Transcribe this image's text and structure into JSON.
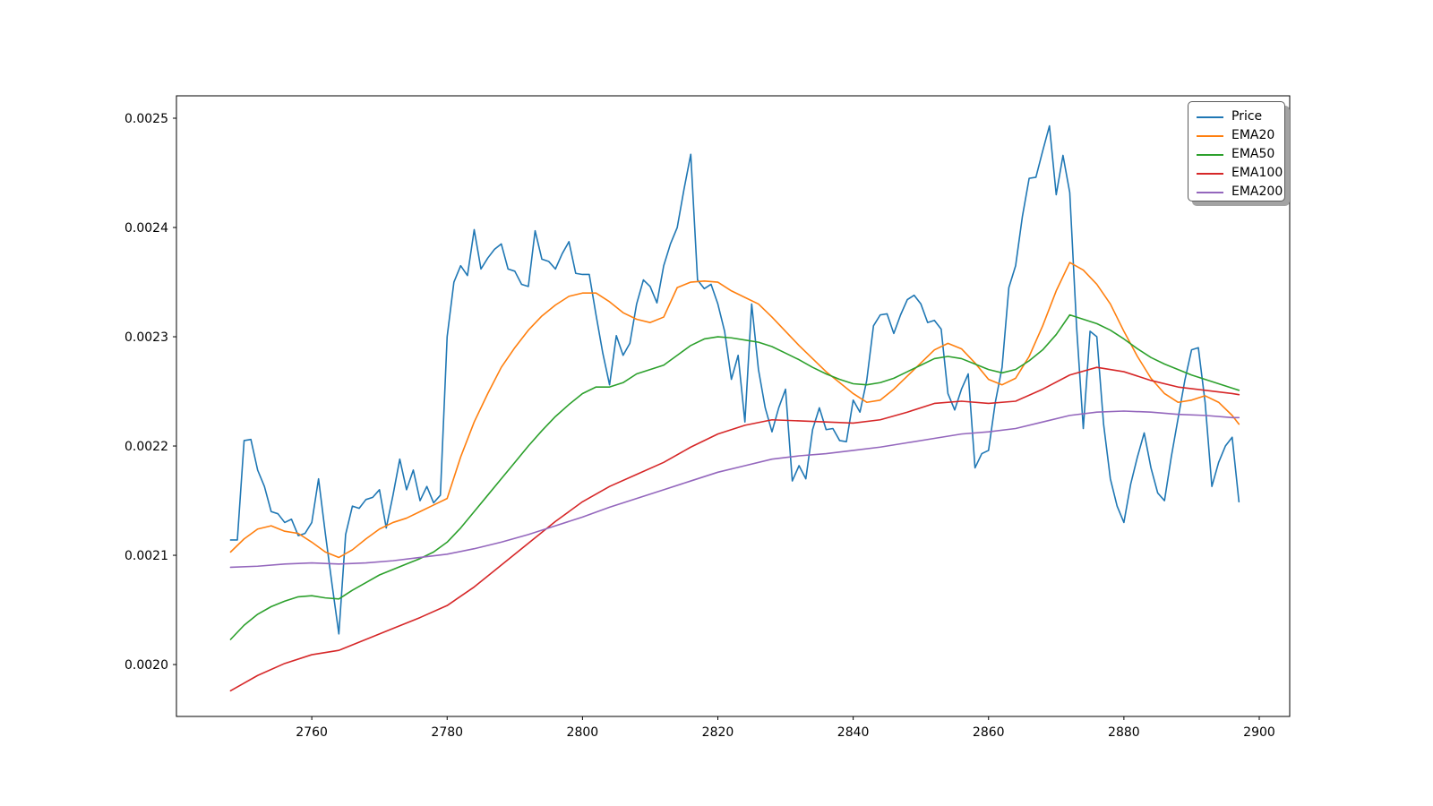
{
  "colors": {
    "background": "#ffffff",
    "spine": "#000000",
    "tick": "#000000",
    "tick_label": "#000000",
    "legend_bg": "#ffffff",
    "legend_border": "#5a5a5a",
    "legend_shadow": "#a3a3a3"
  },
  "legend": {
    "position": "upper right"
  },
  "chart_data": {
    "type": "line",
    "title": "",
    "xlabel": "",
    "ylabel": "",
    "xlim": [
      2740,
      2904.5
    ],
    "ylim": [
      0.0019525,
      0.0025205
    ],
    "grid": false,
    "legend_position": "upper right",
    "x_ticks": {
      "values": [
        2760,
        2780,
        2800,
        2820,
        2840,
        2860,
        2880,
        2900
      ],
      "labels": [
        "2760",
        "2780",
        "2800",
        "2820",
        "2840",
        "2860",
        "2880",
        "2900"
      ]
    },
    "y_ticks": {
      "values": [
        0.002,
        0.0021,
        0.0022,
        0.0023,
        0.0024,
        0.0025
      ],
      "labels": [
        "0.0020",
        "0.0021",
        "0.0022",
        "0.0023",
        "0.0024",
        "0.0025"
      ]
    },
    "series": [
      {
        "name": "Price",
        "color": "#1f77b4",
        "x_range": [
          2748,
          2897
        ],
        "y": [
          0.002114,
          0.002114,
          0.002205,
          0.002206,
          0.002178,
          0.002163,
          0.00214,
          0.002138,
          0.00213,
          0.002133,
          0.002118,
          0.00212,
          0.00213,
          0.00217,
          0.00212,
          0.002073,
          0.002028,
          0.002119,
          0.002145,
          0.002143,
          0.002151,
          0.002153,
          0.00216,
          0.002125,
          0.002155,
          0.002188,
          0.00216,
          0.002178,
          0.00215,
          0.002163,
          0.002148,
          0.002155,
          0.0023,
          0.00235,
          0.002365,
          0.002356,
          0.002398,
          0.002362,
          0.002372,
          0.00238,
          0.002385,
          0.002362,
          0.00236,
          0.002348,
          0.002346,
          0.002397,
          0.002371,
          0.002369,
          0.002362,
          0.002376,
          0.002387,
          0.002358,
          0.002357,
          0.002357,
          0.00232,
          0.002285,
          0.002256,
          0.002301,
          0.002283,
          0.002294,
          0.00233,
          0.002352,
          0.002346,
          0.002331,
          0.002365,
          0.002385,
          0.0024,
          0.002435,
          0.002467,
          0.002352,
          0.002344,
          0.002348,
          0.00233,
          0.002305,
          0.002261,
          0.002283,
          0.002222,
          0.00233,
          0.00227,
          0.002235,
          0.002213,
          0.002235,
          0.002252,
          0.002168,
          0.002182,
          0.00217,
          0.002215,
          0.002235,
          0.002215,
          0.002216,
          0.002205,
          0.002204,
          0.002242,
          0.002231,
          0.00226,
          0.00231,
          0.00232,
          0.002321,
          0.002303,
          0.00232,
          0.002334,
          0.002338,
          0.00233,
          0.002313,
          0.002315,
          0.002307,
          0.002248,
          0.002233,
          0.002252,
          0.002266,
          0.00218,
          0.002193,
          0.002196,
          0.00224,
          0.002272,
          0.002345,
          0.002365,
          0.00241,
          0.002445,
          0.002446,
          0.00247,
          0.002493,
          0.00243,
          0.002466,
          0.002432,
          0.00231,
          0.002216,
          0.002305,
          0.0023,
          0.00222,
          0.00217,
          0.002145,
          0.00213,
          0.002165,
          0.00219,
          0.002212,
          0.00218,
          0.002157,
          0.00215,
          0.00219,
          0.002225,
          0.00226,
          0.002288,
          0.00229,
          0.00224,
          0.002163,
          0.002185,
          0.0022,
          0.002208,
          0.002149
        ]
      },
      {
        "name": "EMA20",
        "color": "#ff7f0e",
        "x": [
          2748,
          2750,
          2752,
          2754,
          2756,
          2758,
          2760,
          2762,
          2764,
          2766,
          2768,
          2770,
          2772,
          2774,
          2776,
          2778,
          2780,
          2782,
          2784,
          2786,
          2788,
          2790,
          2792,
          2794,
          2796,
          2798,
          2800,
          2802,
          2804,
          2806,
          2808,
          2810,
          2812,
          2814,
          2816,
          2818,
          2820,
          2822,
          2824,
          2826,
          2828,
          2830,
          2832,
          2834,
          2836,
          2838,
          2840,
          2842,
          2844,
          2846,
          2848,
          2850,
          2852,
          2854,
          2856,
          2858,
          2860,
          2862,
          2864,
          2866,
          2868,
          2870,
          2872,
          2874,
          2876,
          2878,
          2880,
          2882,
          2884,
          2886,
          2888,
          2890,
          2892,
          2894,
          2896,
          2897
        ],
        "y": [
          0.002103,
          0.002115,
          0.002124,
          0.002127,
          0.002122,
          0.00212,
          0.002112,
          0.002103,
          0.002098,
          0.002105,
          0.002115,
          0.002124,
          0.00213,
          0.002134,
          0.00214,
          0.002146,
          0.002152,
          0.00219,
          0.002222,
          0.002248,
          0.002272,
          0.00229,
          0.002306,
          0.002319,
          0.002329,
          0.002337,
          0.00234,
          0.00234,
          0.002332,
          0.002322,
          0.002316,
          0.002313,
          0.002318,
          0.002345,
          0.00235,
          0.002351,
          0.00235,
          0.002342,
          0.002336,
          0.00233,
          0.002318,
          0.002305,
          0.002292,
          0.00228,
          0.002268,
          0.002258,
          0.002248,
          0.00224,
          0.002242,
          0.002252,
          0.002264,
          0.002276,
          0.002288,
          0.002294,
          0.002289,
          0.002276,
          0.002261,
          0.002256,
          0.002262,
          0.002282,
          0.00231,
          0.002342,
          0.002368,
          0.002361,
          0.002348,
          0.00233,
          0.002305,
          0.002282,
          0.002262,
          0.002248,
          0.00224,
          0.002242,
          0.002246,
          0.00224,
          0.002228,
          0.00222
        ]
      },
      {
        "name": "EMA50",
        "color": "#2ca02c",
        "x": [
          2748,
          2750,
          2752,
          2754,
          2756,
          2758,
          2760,
          2762,
          2764,
          2766,
          2768,
          2770,
          2772,
          2774,
          2776,
          2778,
          2780,
          2782,
          2784,
          2786,
          2788,
          2790,
          2792,
          2794,
          2796,
          2798,
          2800,
          2802,
          2804,
          2806,
          2808,
          2810,
          2812,
          2814,
          2816,
          2818,
          2820,
          2822,
          2824,
          2826,
          2828,
          2830,
          2832,
          2834,
          2836,
          2838,
          2840,
          2842,
          2844,
          2846,
          2848,
          2850,
          2852,
          2854,
          2856,
          2858,
          2860,
          2862,
          2864,
          2866,
          2868,
          2870,
          2872,
          2874,
          2876,
          2878,
          2880,
          2882,
          2884,
          2886,
          2888,
          2890,
          2892,
          2894,
          2896,
          2897
        ],
        "y": [
          0.002023,
          0.002036,
          0.002046,
          0.002053,
          0.002058,
          0.002062,
          0.002063,
          0.002061,
          0.00206,
          0.002068,
          0.002075,
          0.002082,
          0.002087,
          0.002092,
          0.002097,
          0.002103,
          0.002112,
          0.002125,
          0.00214,
          0.002155,
          0.00217,
          0.002185,
          0.0022,
          0.002214,
          0.002227,
          0.002238,
          0.002248,
          0.002254,
          0.002254,
          0.002258,
          0.002266,
          0.00227,
          0.002274,
          0.002283,
          0.002292,
          0.002298,
          0.0023,
          0.002299,
          0.002297,
          0.002295,
          0.002291,
          0.002285,
          0.002279,
          0.002272,
          0.002266,
          0.002261,
          0.002257,
          0.002256,
          0.002258,
          0.002262,
          0.002268,
          0.002274,
          0.00228,
          0.002282,
          0.00228,
          0.002275,
          0.00227,
          0.002267,
          0.00227,
          0.002278,
          0.002288,
          0.002302,
          0.00232,
          0.002316,
          0.002312,
          0.002306,
          0.002298,
          0.002289,
          0.002281,
          0.002275,
          0.00227,
          0.002265,
          0.002261,
          0.002257,
          0.002253,
          0.002251
        ]
      },
      {
        "name": "EMA100",
        "color": "#d62728",
        "x": [
          2748,
          2752,
          2756,
          2760,
          2764,
          2768,
          2772,
          2776,
          2780,
          2784,
          2788,
          2792,
          2796,
          2800,
          2804,
          2808,
          2812,
          2816,
          2820,
          2824,
          2828,
          2832,
          2836,
          2840,
          2844,
          2848,
          2852,
          2856,
          2860,
          2864,
          2868,
          2872,
          2876,
          2880,
          2884,
          2888,
          2892,
          2896,
          2897
        ],
        "y": [
          0.001976,
          0.00199,
          0.002001,
          0.002009,
          0.002013,
          0.002023,
          0.002033,
          0.002043,
          0.002054,
          0.002071,
          0.002091,
          0.002111,
          0.002131,
          0.002149,
          0.002163,
          0.002174,
          0.002185,
          0.002199,
          0.002211,
          0.002219,
          0.002224,
          0.002223,
          0.002222,
          0.002221,
          0.002224,
          0.002231,
          0.002239,
          0.002241,
          0.002239,
          0.002241,
          0.002252,
          0.002265,
          0.002272,
          0.002268,
          0.00226,
          0.002254,
          0.002251,
          0.002248,
          0.002247
        ]
      },
      {
        "name": "EMA200",
        "color": "#9467bd",
        "x": [
          2748,
          2752,
          2756,
          2760,
          2764,
          2768,
          2772,
          2776,
          2780,
          2784,
          2788,
          2792,
          2796,
          2800,
          2804,
          2808,
          2812,
          2816,
          2820,
          2824,
          2828,
          2832,
          2836,
          2840,
          2844,
          2848,
          2852,
          2856,
          2860,
          2864,
          2868,
          2872,
          2876,
          2880,
          2884,
          2888,
          2892,
          2896,
          2897
        ],
        "y": [
          0.002089,
          0.00209,
          0.002092,
          0.002093,
          0.002092,
          0.002093,
          0.002095,
          0.002098,
          0.002101,
          0.002106,
          0.002112,
          0.002119,
          0.002127,
          0.002135,
          0.002144,
          0.002152,
          0.00216,
          0.002168,
          0.002176,
          0.002182,
          0.002188,
          0.002191,
          0.002193,
          0.002196,
          0.002199,
          0.002203,
          0.002207,
          0.002211,
          0.002213,
          0.002216,
          0.002222,
          0.002228,
          0.002231,
          0.002232,
          0.002231,
          0.002229,
          0.002228,
          0.002226,
          0.002226
        ]
      }
    ]
  }
}
